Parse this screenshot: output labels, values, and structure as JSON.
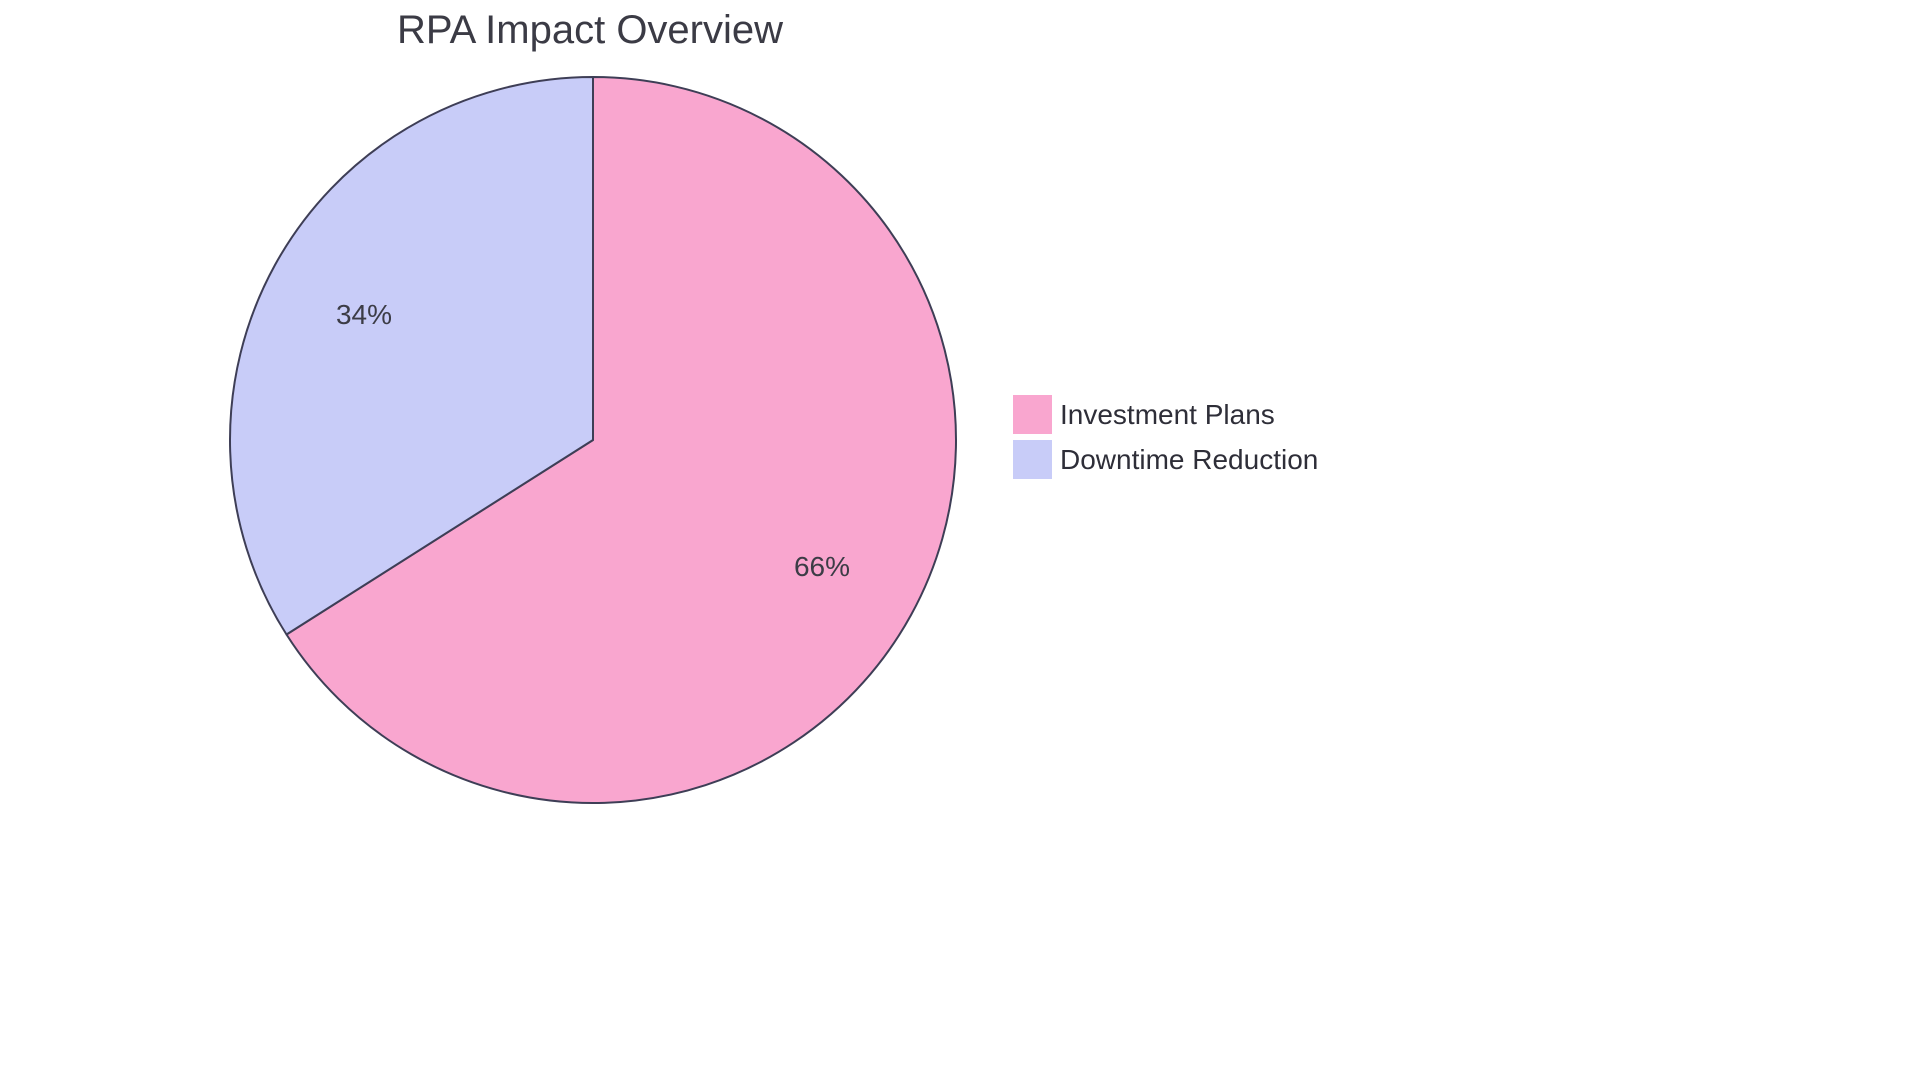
{
  "chart_data": {
    "type": "pie",
    "title": "RPA Impact Overview",
    "labels": [
      "Investment Plans",
      "Downtime Reduction"
    ],
    "values": [
      66,
      34
    ],
    "value_labels": [
      "66%",
      "34%"
    ],
    "colors": [
      "#F9A6CF",
      "#C8CCF8"
    ],
    "stroke_color": "#3e3e56",
    "stroke_width": 2,
    "legend_position": "right",
    "start_angle": "top",
    "direction": "clockwise",
    "grid": false
  }
}
